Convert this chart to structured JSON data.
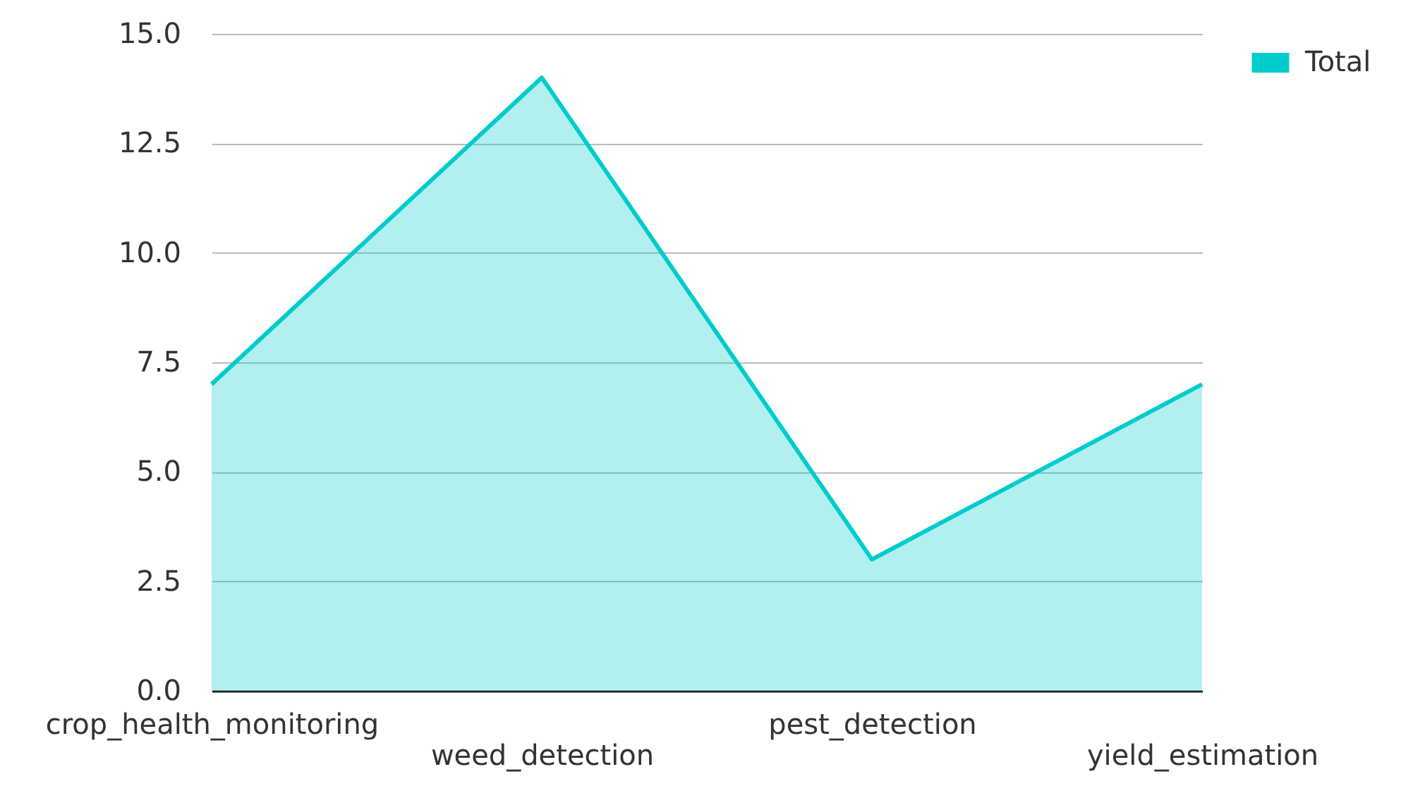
{
  "chart_data": {
    "type": "area",
    "categories": [
      "crop_health_monitoring",
      "weed_detection",
      "pest_detection",
      "yield_estimation"
    ],
    "series": [
      {
        "name": "Total",
        "color": "#00cccc",
        "values": [
          7,
          14,
          3,
          7
        ]
      }
    ],
    "ylim": [
      0,
      15
    ],
    "yticks": [
      {
        "value": 0,
        "label": "0.0"
      },
      {
        "value": 2.5,
        "label": "2.5"
      },
      {
        "value": 5,
        "label": "5.0"
      },
      {
        "value": 7.5,
        "label": "7.5"
      },
      {
        "value": 10,
        "label": "10.0"
      },
      {
        "value": 12.5,
        "label": "12.5"
      },
      {
        "value": 15,
        "label": "15.0"
      }
    ],
    "grid": "y",
    "legend": "top right"
  }
}
